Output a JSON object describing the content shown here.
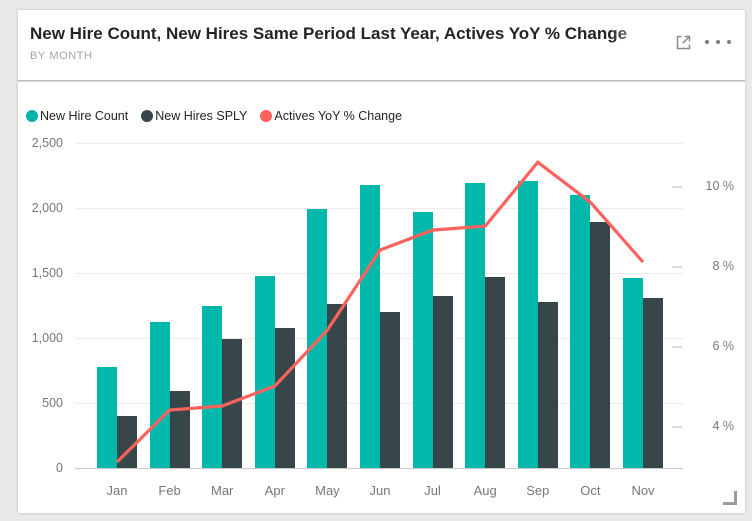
{
  "card": {
    "title": "New Hire Count, New Hires Same Period Last Year, Actives YoY % Change",
    "subtitle": "BY MONTH"
  },
  "header_icons": [
    {
      "name": "focus-mode-icon"
    },
    {
      "name": "more-options-icon"
    }
  ],
  "colors": {
    "background": "#e9e9e9",
    "card": "#ffffff",
    "teal": "#01B8AA",
    "dark": "#374649",
    "coral": "#FD625E",
    "title_text": "#252423",
    "subtitle_text": "#a6a6a6",
    "axis_text": "#777777",
    "gridline": "#ececec",
    "axis_line": "#c8c8c8"
  },
  "chart_data": {
    "type": "combo-bar-line",
    "title": "New Hire Count, New Hires Same Period Last Year, Actives YoY % Change by Month",
    "legend_position": "top",
    "grid": true,
    "categories": [
      "Jan",
      "Feb",
      "Mar",
      "Apr",
      "May",
      "Jun",
      "Jul",
      "Aug",
      "Sep",
      "Oct",
      "Nov"
    ],
    "series": [
      {
        "name": "New Hire Count",
        "type": "bar",
        "axis": "left",
        "color": "#01B8AA",
        "values": [
          780,
          1120,
          1250,
          1480,
          1990,
          2180,
          1970,
          2190,
          2210,
          2100,
          1460
        ]
      },
      {
        "name": "New Hires SPLY",
        "type": "bar",
        "axis": "left",
        "color": "#374649",
        "values": [
          400,
          590,
          990,
          1080,
          1260,
          1200,
          1320,
          1470,
          1280,
          1890,
          1310
        ]
      },
      {
        "name": "Actives YoY % Change",
        "type": "line",
        "axis": "right",
        "color": "#FD625E",
        "values": [
          3.1,
          4.4,
          4.5,
          5.0,
          6.4,
          8.4,
          8.9,
          9.0,
          10.6,
          9.6,
          8.1
        ]
      }
    ],
    "left_axis": {
      "range": [
        0,
        2500
      ],
      "ticks": [
        {
          "value": 0,
          "label": "0"
        },
        {
          "value": 500,
          "label": "500"
        },
        {
          "value": 1000,
          "label": "1,000"
        },
        {
          "value": 1500,
          "label": "1,500"
        },
        {
          "value": 2000,
          "label": "2,000"
        },
        {
          "value": 2500,
          "label": "2,500"
        }
      ]
    },
    "right_axis": {
      "range": [
        2.95,
        11.08
      ],
      "ticks": [
        {
          "value": 4,
          "label": "4 %"
        },
        {
          "value": 6,
          "label": "6 %"
        },
        {
          "value": 8,
          "label": "8 %"
        },
        {
          "value": 10,
          "label": "10 %"
        }
      ]
    }
  }
}
